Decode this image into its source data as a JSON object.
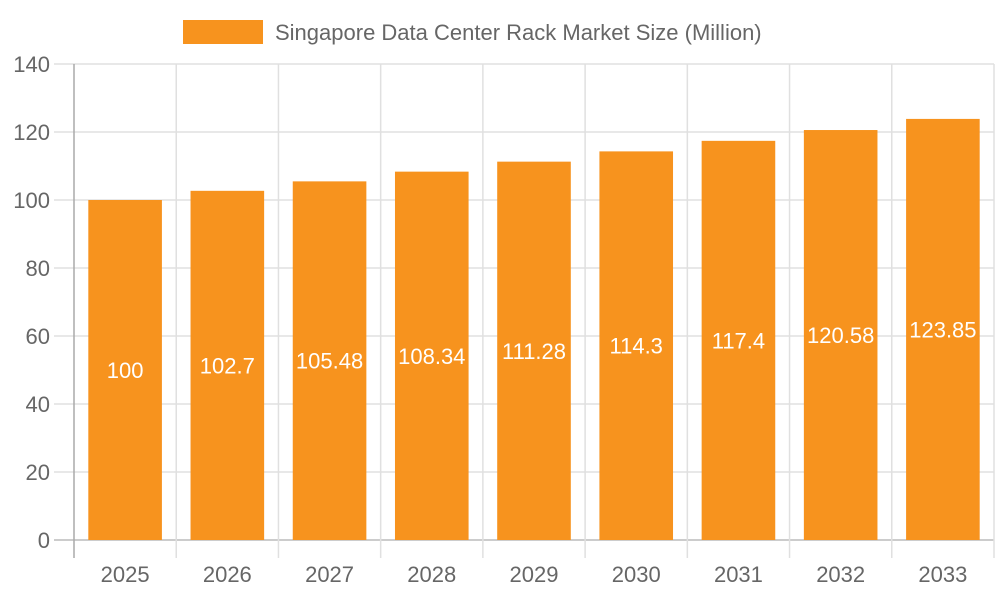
{
  "chart_data": {
    "type": "bar",
    "title": "",
    "xlabel": "",
    "ylabel": "",
    "categories": [
      "2025",
      "2026",
      "2027",
      "2028",
      "2029",
      "2030",
      "2031",
      "2032",
      "2033"
    ],
    "series": [
      {
        "name": "Singapore Data Center Rack Market Size (Million)",
        "values": [
          100,
          102.7,
          105.48,
          108.34,
          111.28,
          114.3,
          117.4,
          120.58,
          123.85
        ],
        "color": "#F7931E"
      }
    ],
    "ylim": [
      0,
      140
    ],
    "yticks": [
      0,
      20,
      40,
      60,
      80,
      100,
      120,
      140
    ],
    "grid": true,
    "legend": "top",
    "data_labels": true
  }
}
